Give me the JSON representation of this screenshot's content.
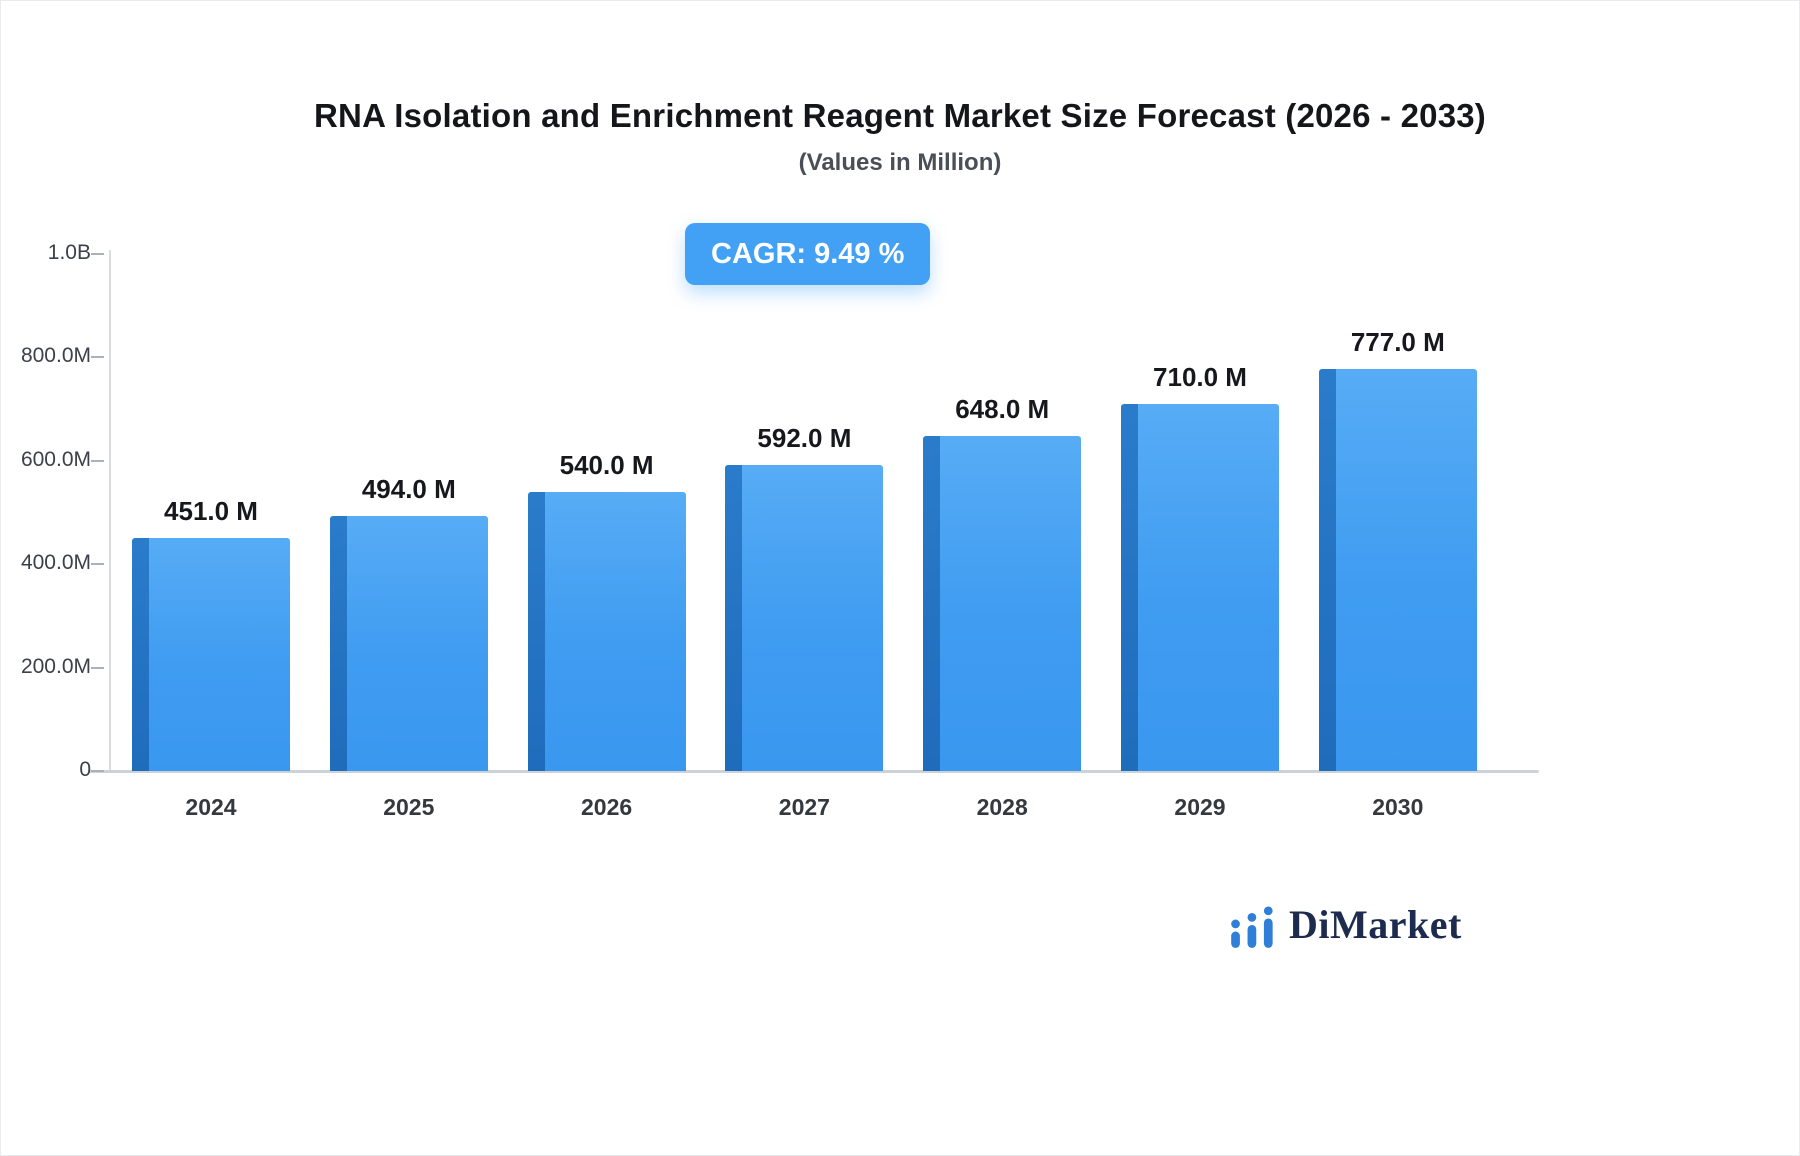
{
  "badge": {
    "label": "CAGR: 9.49 %",
    "color": "#42a1f5"
  },
  "logo": {
    "text": "DiMarket",
    "icon": "bar-chart-dots-icon",
    "icon_color": "#2f7ed8",
    "text_color": "#1d2c4e"
  },
  "chart_data": {
    "type": "bar",
    "title": "RNA Isolation and Enrichment Reagent Market Size Forecast (2026 - 2033)",
    "subtitle": "(Values in Million)",
    "categories": [
      "2024",
      "2025",
      "2026",
      "2027",
      "2028",
      "2029",
      "2030"
    ],
    "values": [
      451,
      494,
      540,
      592,
      648,
      710,
      777
    ],
    "value_labels": [
      "451.0 M",
      "494.0 M",
      "540.0 M",
      "592.0 M",
      "648.0 M",
      "710.0 M",
      "777.0 M"
    ],
    "unit": "Million",
    "xlabel": "",
    "ylabel": "",
    "ylim": [
      0,
      1000
    ],
    "yticks": {
      "values": [
        0,
        200,
        400,
        600,
        800,
        1000
      ],
      "labels": [
        "0",
        "200.0M",
        "400.0M",
        "600.0M",
        "800.0M",
        "1.0B"
      ]
    },
    "grid": false,
    "legend": "none",
    "bar_color": "#3f9cf1",
    "bar_side_color": "#1f6cbb"
  }
}
